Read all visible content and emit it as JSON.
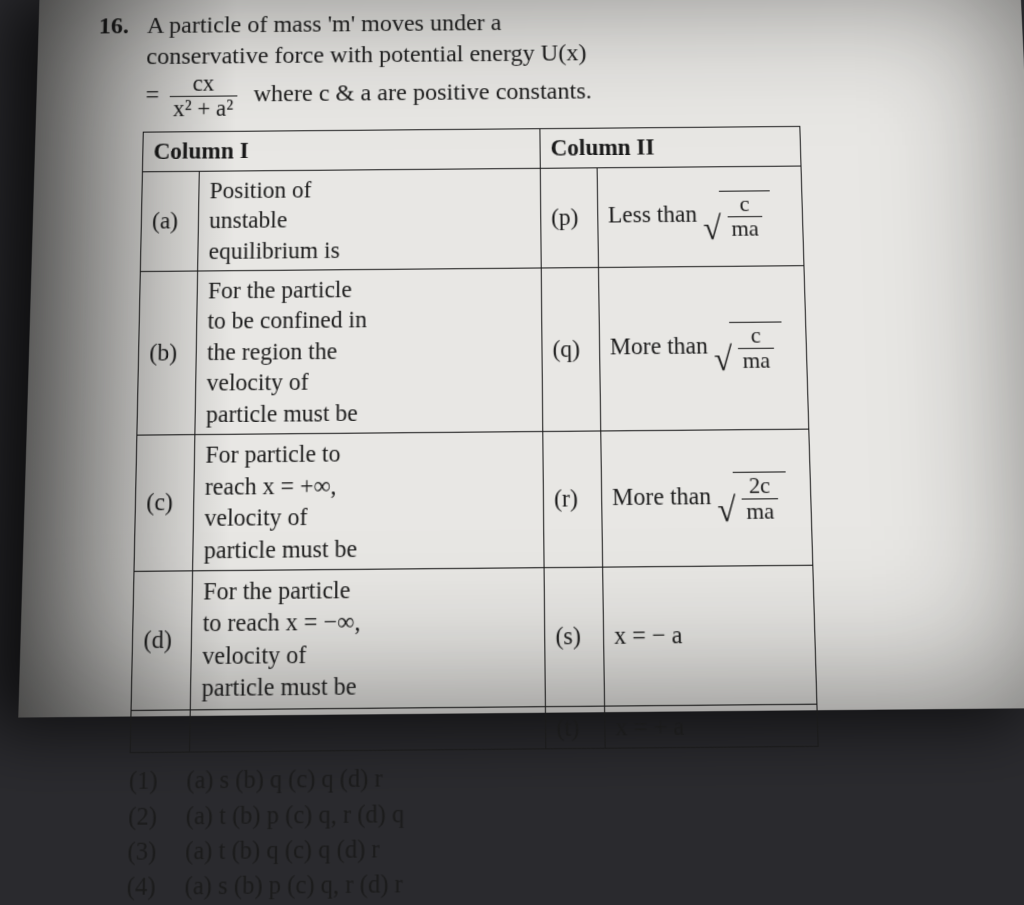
{
  "question": {
    "number": "16.",
    "line1": "A particle of mass 'm' moves under a",
    "line2": "conservative force with potential energy U(x)",
    "line3_suffix": "where c & a are positive constants.",
    "frac_num": "cx",
    "frac_den": "x² + a²",
    "equals": "="
  },
  "table": {
    "head_col1": "Column I",
    "head_col2": "Column II",
    "rows": [
      {
        "l": "(a)",
        "c1a": "Position of",
        "c1b": "unstable",
        "c1c": "equilibrium is",
        "r": "(p)",
        "c2_prefix": "Less than",
        "sqrt_num": "c",
        "sqrt_den": "ma"
      },
      {
        "l": "(b)",
        "c1a": "For the particle",
        "c1b": "to be confined in",
        "c1c": "the region the",
        "c1d": "velocity of",
        "c1e": "particle must be",
        "r": "(q)",
        "c2_prefix": "More than",
        "sqrt_num": "c",
        "sqrt_den": "ma"
      },
      {
        "l": "(c)",
        "c1a": "For particle to",
        "c1b": "reach x = +∞,",
        "c1c": "velocity of",
        "c1d": "particle must be",
        "r": "(r)",
        "c2_prefix": "More than",
        "sqrt_num": "2c",
        "sqrt_den": "ma"
      },
      {
        "l": "(d)",
        "c1a": "For the particle",
        "c1b": "to reach x = −∞,",
        "c1c": "velocity of",
        "c1d": "particle must be",
        "r": "(s)",
        "c2_plain": "x = − a"
      },
      {
        "l": "",
        "c1a": "",
        "r": "(t)",
        "c2_plain": "x = + a"
      }
    ]
  },
  "options": [
    {
      "n": "(1)",
      "t": "(a) s (b) q (c) q (d) r"
    },
    {
      "n": "(2)",
      "t": "(a) t (b) p (c) q, r (d) q"
    },
    {
      "n": "(3)",
      "t": "(a) t (b) q (c) q (d) r"
    },
    {
      "n": "(4)",
      "t": "(a) s (b) p (c) q, r (d) r"
    }
  ]
}
